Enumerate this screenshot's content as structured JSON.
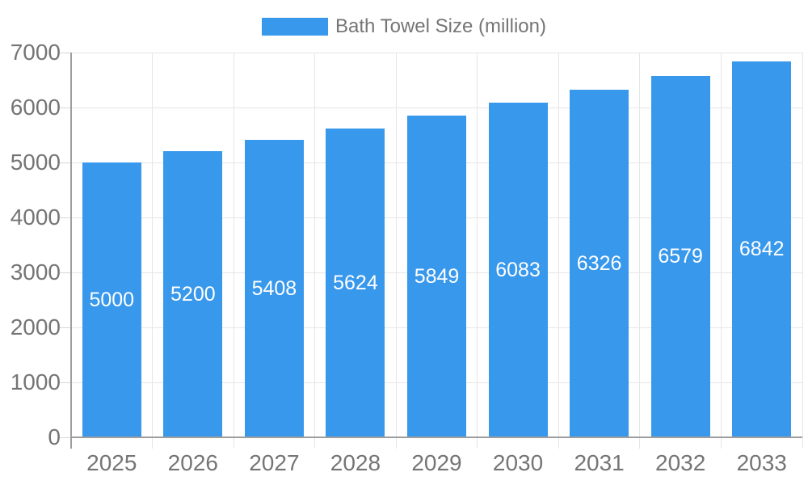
{
  "legend": {
    "label": "Bath Towel Size (million)"
  },
  "colors": {
    "bar": "#3898EC",
    "grid": "#E6E6E6",
    "tick": "#D6D6D6",
    "axis": "#9E9E9E",
    "text": "#757575",
    "bar_label": "#FFFFFF",
    "background": "#FFFFFF"
  },
  "chart_data": {
    "type": "bar",
    "title": "",
    "xlabel": "",
    "ylabel": "",
    "categories": [
      "2025",
      "2026",
      "2027",
      "2028",
      "2029",
      "2030",
      "2031",
      "2032",
      "2033"
    ],
    "series": [
      {
        "name": "Bath Towel Size (million)",
        "values": [
          5000,
          5200,
          5408,
          5624,
          5849,
          6083,
          6326,
          6579,
          6842
        ]
      }
    ],
    "data_labels": [
      "5000",
      "5200",
      "5408",
      "5624",
      "5849",
      "6083",
      "6326",
      "6579",
      "6842"
    ],
    "data_label_position": "inside-center",
    "ylim": [
      0,
      7000
    ],
    "yticks": [
      0,
      1000,
      2000,
      3000,
      4000,
      5000,
      6000,
      7000
    ],
    "grid": "both",
    "legend_position": "top"
  }
}
